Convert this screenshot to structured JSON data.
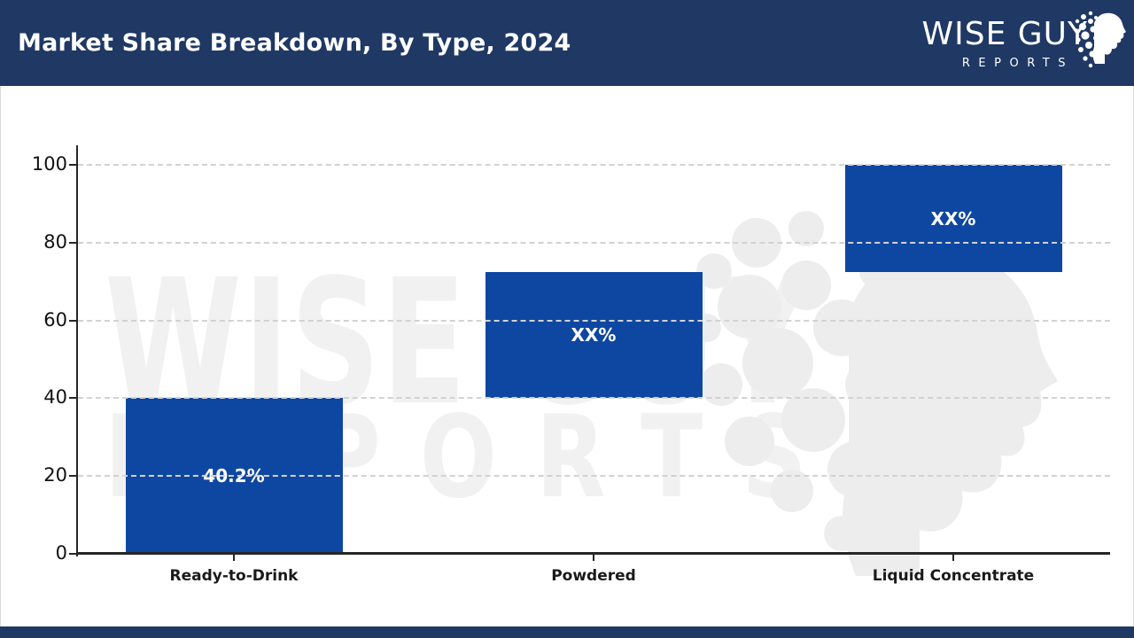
{
  "header": {
    "title": "Market Share Breakdown, By Type, 2024",
    "logo_line1": "WISE GUY",
    "logo_line2": "REPORTS"
  },
  "watermark": {
    "line1": "WISE GUY",
    "line2": "REPORTS"
  },
  "chart_data": {
    "type": "bar",
    "subtype": "cumulative-floating-bars (waterfall-style market share)",
    "title": "Market Share Breakdown, By Type, 2024",
    "categories": [
      "Ready-to-Drink",
      "Powdered",
      "Liquid Concentrate"
    ],
    "segments": [
      {
        "category": "Ready-to-Drink",
        "start": 0,
        "end": 40.2,
        "value": 40.2,
        "label": "40.2%"
      },
      {
        "category": "Powdered",
        "start": 40.2,
        "end": 72.4,
        "value": 32.2,
        "label": "XX%"
      },
      {
        "category": "Liquid Concentrate",
        "start": 72.4,
        "end": 100,
        "value": 27.6,
        "label": "XX%"
      }
    ],
    "ylim": [
      0,
      100
    ],
    "yticks": [
      0,
      20,
      40,
      60,
      80,
      100
    ],
    "xlabel": "",
    "ylabel": "",
    "grid": "horizontal-dashed, drawn over bars",
    "legend": "none",
    "colors": {
      "bar": "#0E47A1",
      "bar_label": "#FFFFFF",
      "axis": "#262626",
      "grid": "#D2D2D2",
      "tick_label": "#111111",
      "header_bg": "#1F3864",
      "footer_bg": "#1F3864",
      "watermark": "#F1F1F1"
    }
  }
}
